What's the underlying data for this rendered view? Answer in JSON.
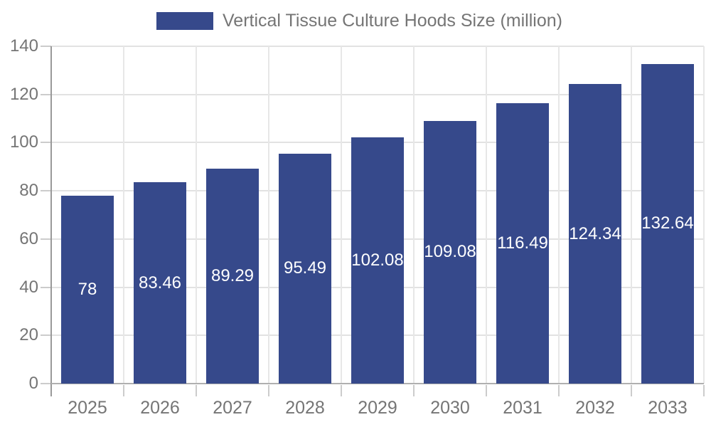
{
  "legend": {
    "label": "Vertical Tissue Culture Hoods Size (million)",
    "swatch_color": "#36498b"
  },
  "chart_data": {
    "type": "bar",
    "title": "Vertical Tissue Culture Hoods Size (million)",
    "series_name": "Vertical Tissue Culture Hoods Size (million)",
    "categories": [
      "2025",
      "2026",
      "2027",
      "2028",
      "2029",
      "2030",
      "2031",
      "2032",
      "2033"
    ],
    "values": [
      78,
      83.46,
      89.29,
      95.49,
      102.08,
      109.08,
      116.49,
      124.34,
      132.64
    ],
    "value_labels": [
      "78",
      "83.46",
      "89.29",
      "95.49",
      "102.08",
      "109.08",
      "116.49",
      "124.34",
      "132.64"
    ],
    "xlabel": "",
    "ylabel": "",
    "ylim": [
      0,
      140
    ],
    "yticks": [
      0,
      20,
      40,
      60,
      80,
      100,
      120,
      140
    ],
    "grid": true,
    "legend_position": "top-center",
    "bar_color": "#36498b",
    "value_label_color": "#ffffff",
    "axis_text_color": "#757575",
    "h_gridline_color": "#e2e2e2",
    "v_gridline_color": "#e7e7e7",
    "y_axis_line_color": "#999999",
    "x_axis_line_color": "#b0b0b0",
    "tick_color": "#cccccc"
  }
}
